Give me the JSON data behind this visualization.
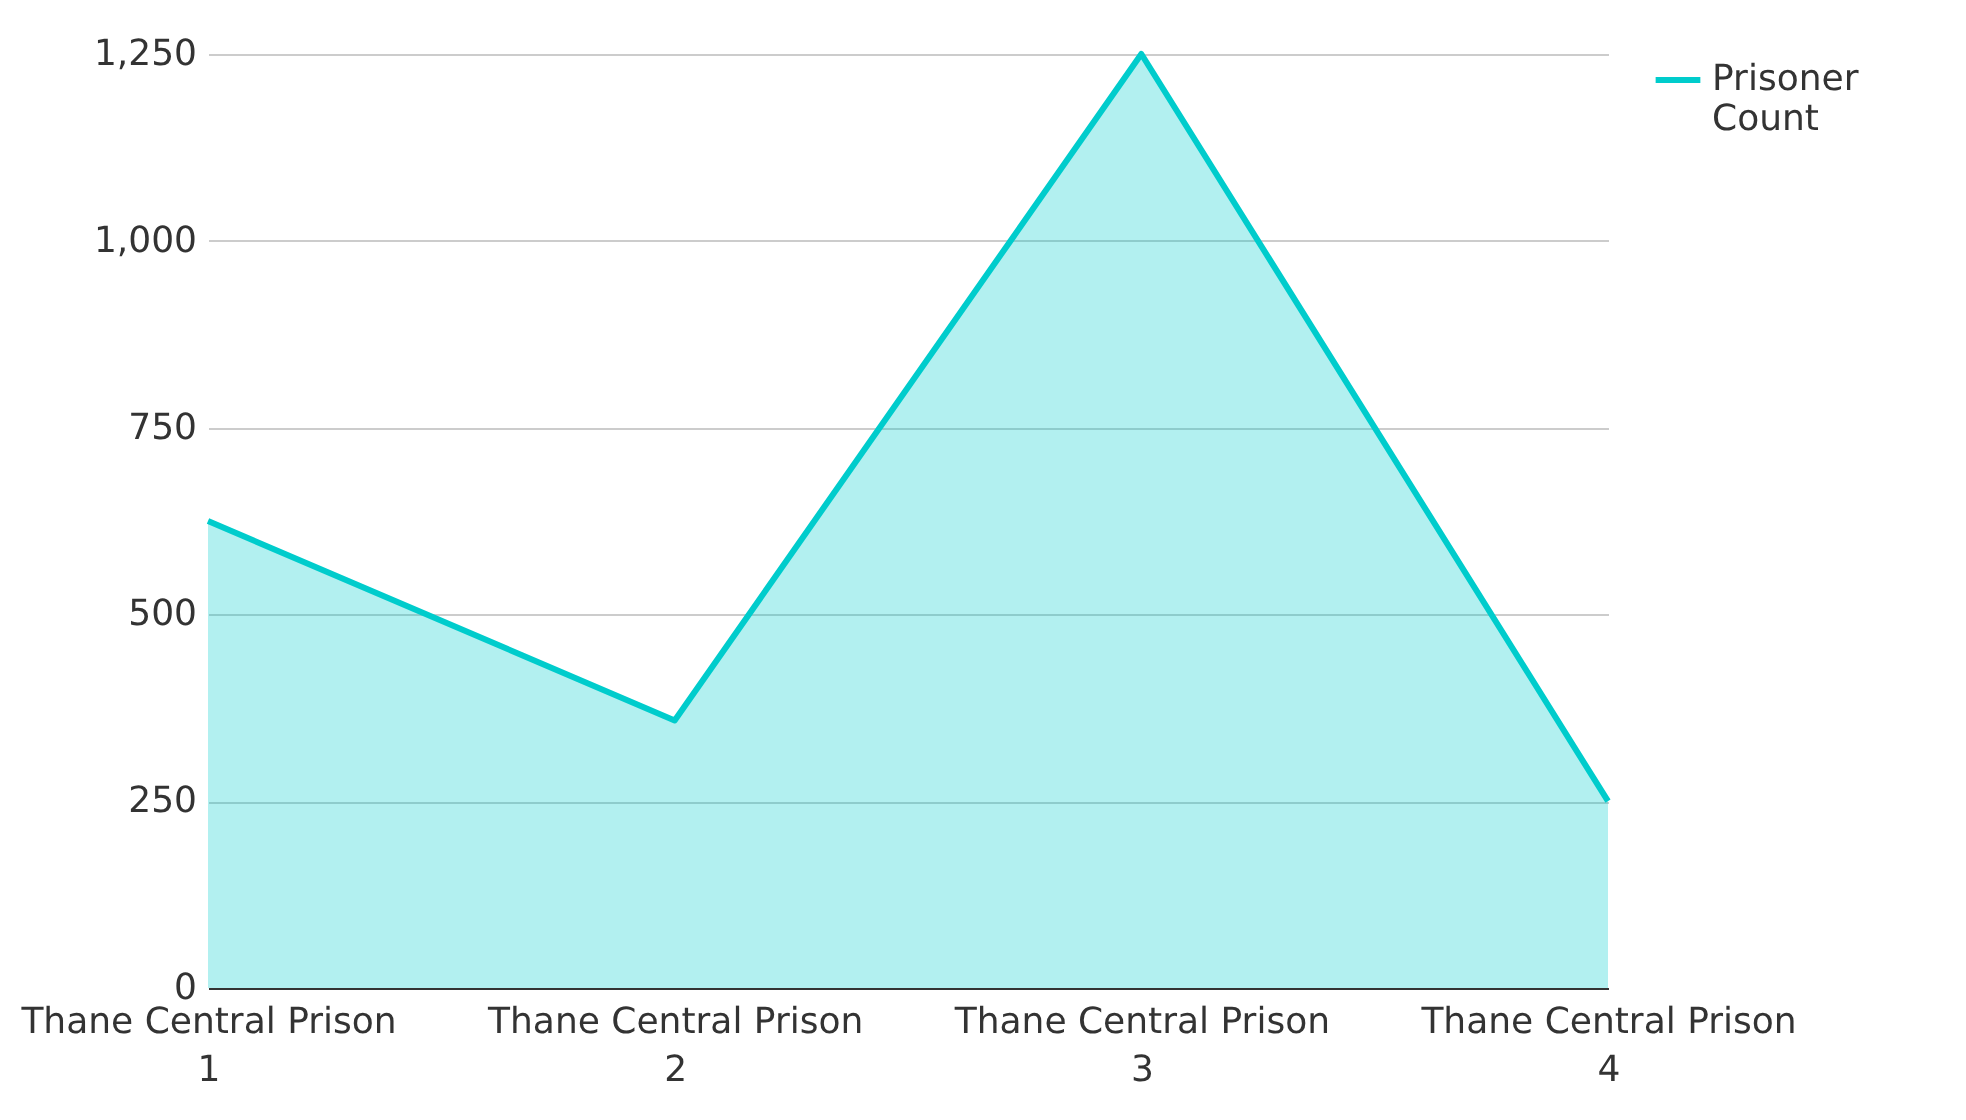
{
  "chart_data": {
    "type": "area",
    "categories": [
      "Thane Central Prison 1",
      "Thane Central Prison 2",
      "Thane Central Prison 3",
      "Thane Central Prison 4"
    ],
    "series": [
      {
        "name": "Prisoner Count",
        "color": "#00cccc",
        "values": [
          625,
          358,
          1250,
          250
        ]
      }
    ],
    "ylim": [
      0,
      1250
    ],
    "yticks": [
      0,
      250,
      500,
      750,
      {
        "value": 1000,
        "label": "1,000"
      },
      {
        "value": 1250,
        "label": "1,250"
      }
    ],
    "grid": "y",
    "legend": "top right"
  }
}
